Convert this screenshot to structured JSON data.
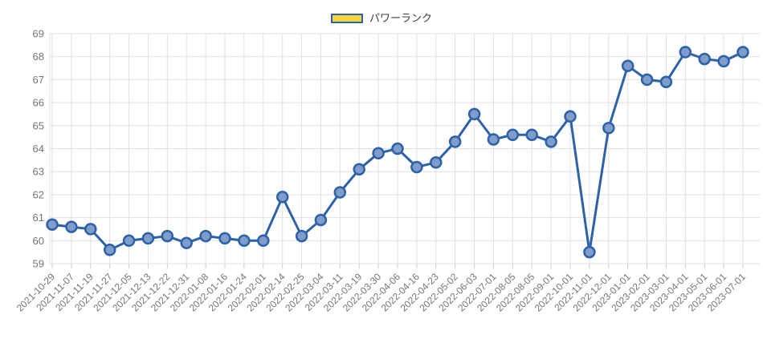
{
  "legend": {
    "label": "パワーランク",
    "swatch_fill": "#f5d43c",
    "swatch_border": "#2d62a8"
  },
  "chart_data": {
    "type": "line",
    "title": "",
    "xlabel": "",
    "ylabel": "",
    "ylim": [
      59,
      69
    ],
    "y_ticks": [
      59,
      60,
      61,
      62,
      63,
      64,
      65,
      66,
      67,
      68,
      69
    ],
    "grid": true,
    "legend_position": "top-center",
    "grid_color": "#e1e1e1",
    "tick_color": "#cccccc",
    "axis_text_color": "#757575",
    "categories": [
      "2021-10-29",
      "2021-11-07",
      "2021-11-19",
      "2021-11-27",
      "2021-12-05",
      "2021-12-13",
      "2021-12-22",
      "2021-12-31",
      "2022-01-08",
      "2022-01-16",
      "2022-01-24",
      "2022-02-01",
      "2022-02-14",
      "2022-02-25",
      "2022-03-04",
      "2022-03-11",
      "2022-03-19",
      "2022-03-30",
      "2022-04-06",
      "2022-04-16",
      "2022-04-23",
      "2022-05-02",
      "2022-06-03",
      "2022-07-01",
      "2022-08-05",
      "2022-08-05",
      "2022-09-01",
      "2022-10-01",
      "2022-11-01",
      "2022-12-01",
      "2023-01-01",
      "2023-02-01",
      "2023-03-01",
      "2023-04-01",
      "2023-05-01",
      "2023-06-01",
      "2023-07-01"
    ],
    "series": [
      {
        "name": "パワーランク",
        "line_color": "#2d62a8",
        "point_fill": "#7f9cca",
        "values": [
          60.7,
          60.6,
          60.5,
          59.6,
          60.0,
          60.1,
          60.2,
          59.9,
          60.2,
          60.1,
          60.0,
          60.0,
          61.9,
          60.2,
          60.9,
          62.1,
          63.1,
          63.8,
          64.0,
          63.2,
          63.4,
          64.3,
          65.5,
          64.4,
          64.6,
          64.6,
          64.3,
          65.4,
          59.5,
          64.9,
          67.6,
          67.0,
          66.9,
          68.2,
          67.9,
          67.8,
          68.2
        ]
      }
    ]
  }
}
